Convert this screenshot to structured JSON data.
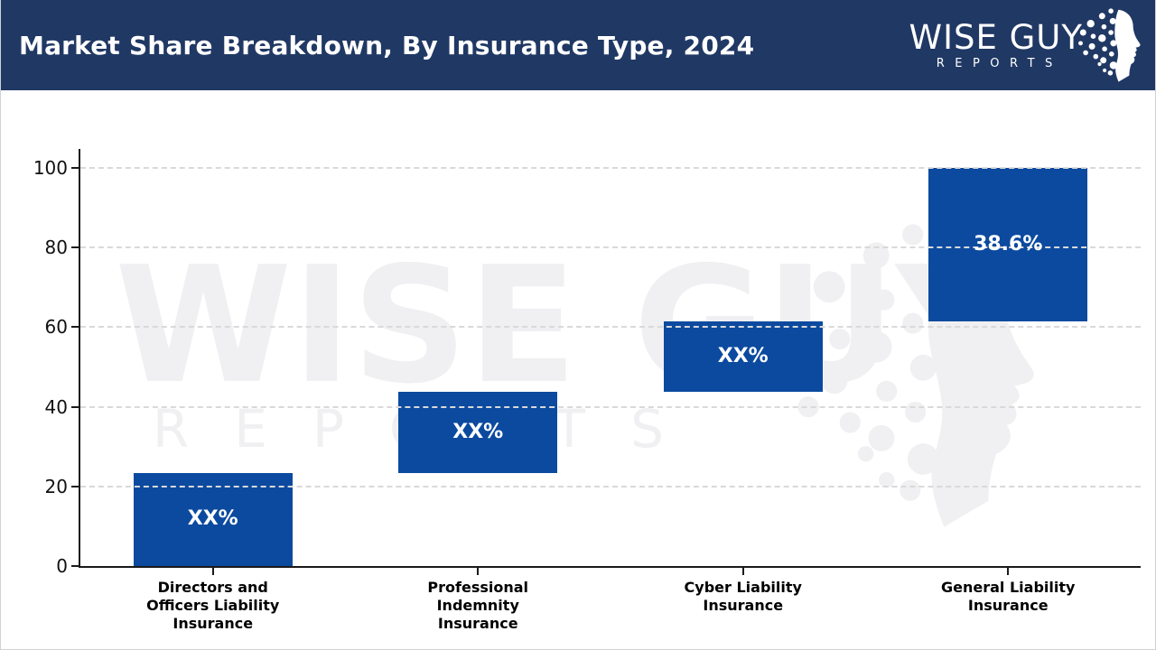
{
  "colors": {
    "header_bg": "#203864",
    "bar": "#0b4a9f",
    "grid": "#d9d9d9",
    "axis": "#1a1a1a",
    "watermark": "#f0f0f2",
    "title_text": "#ffffff",
    "bar_label": "#ffffff",
    "tick_text": "#111111"
  },
  "header": {
    "logo": {
      "line1": "WISE GUY",
      "line2": "REPORTS"
    }
  },
  "watermark": {
    "line1": "WISE GUY",
    "line2": "REPORTS"
  },
  "chart_data": {
    "type": "bar",
    "variant": "waterfall",
    "title": "Market Share Breakdown, By Insurance Type, 2024",
    "categories": [
      "Directors and Officers Liability Insurance",
      "Professional Indemnity Insurance",
      "Cyber Liability Insurance",
      "General Liability Insurance"
    ],
    "category_lines": [
      [
        "Directors and",
        "Officers Liability",
        "Insurance"
      ],
      [
        "Professional",
        "Indemnity",
        "Insurance"
      ],
      [
        "Cyber Liability",
        "Insurance"
      ],
      [
        "General Liability",
        "Insurance"
      ]
    ],
    "segments": [
      {
        "start": 0,
        "end": 23.4
      },
      {
        "start": 23.4,
        "end": 43.8
      },
      {
        "start": 43.8,
        "end": 61.4
      },
      {
        "start": 61.4,
        "end": 100
      }
    ],
    "values": [
      23.4,
      20.4,
      17.6,
      38.6
    ],
    "bar_labels": [
      "XX%",
      "XX%",
      "XX%",
      "38.6%"
    ],
    "xlabel": "",
    "ylabel": "",
    "ylim": [
      0,
      100
    ],
    "yticks": [
      0,
      20,
      40,
      60,
      80,
      100
    ],
    "grid": "horizontal-dashed",
    "legend": null,
    "bar_color": "#0b4a9f"
  }
}
